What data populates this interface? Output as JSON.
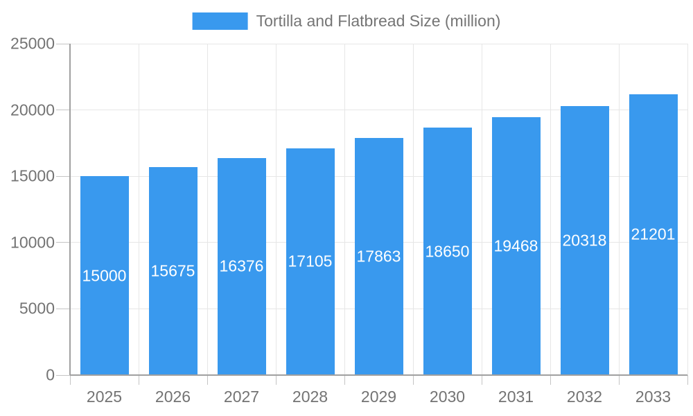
{
  "chart_data": {
    "type": "bar",
    "title": "Tortilla and Flatbread Size (million)",
    "categories": [
      "2025",
      "2026",
      "2027",
      "2028",
      "2029",
      "2030",
      "2031",
      "2032",
      "2033"
    ],
    "values": [
      15000,
      15675,
      16376,
      17105,
      17863,
      18650,
      19468,
      20318,
      21201
    ],
    "series": [
      {
        "name": "Tortilla and Flatbread Size (million)",
        "values": [
          15000,
          15675,
          16376,
          17105,
          17863,
          18650,
          19468,
          20318,
          21201
        ]
      }
    ],
    "xlabel": "",
    "ylabel": "",
    "ylim": [
      0,
      25000
    ],
    "yticks": [
      0,
      5000,
      10000,
      15000,
      20000,
      25000
    ],
    "grid": true,
    "legend_position": "top",
    "value_labels": "inside-center",
    "colors": {
      "bar": "#3999EE",
      "grid": "#e6e6e6",
      "axis": "#a0a0a0",
      "tick": "#c4c4c4",
      "axis_text": "#737373",
      "legend_text": "#757575",
      "value_text": "#ffffff",
      "background": "#ffffff"
    }
  }
}
